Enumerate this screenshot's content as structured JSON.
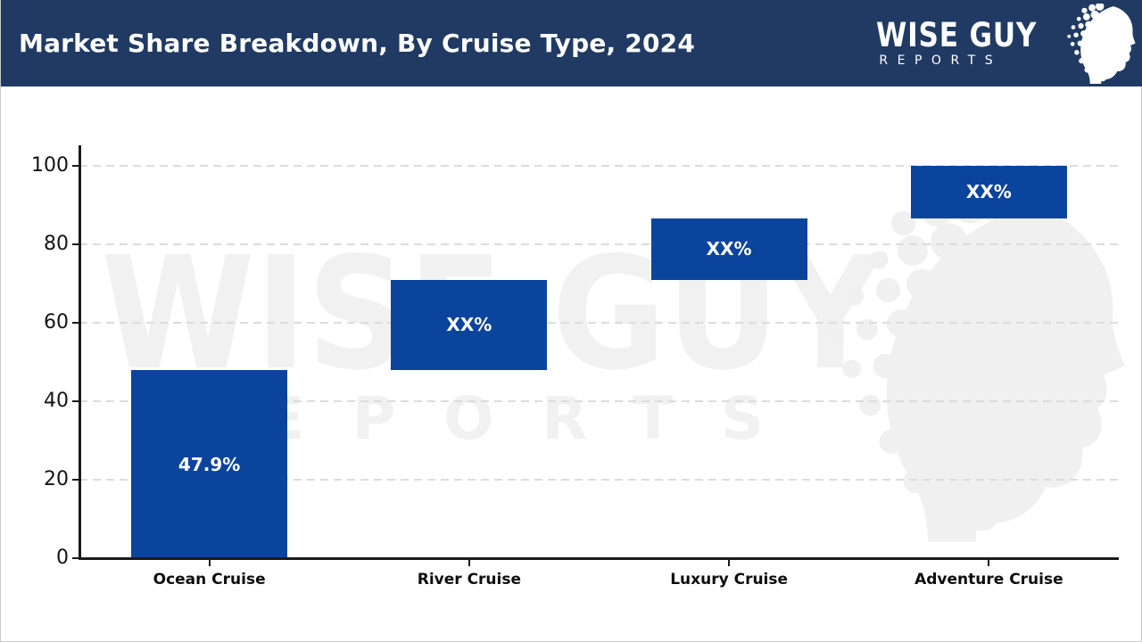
{
  "header": {
    "title": "Market Share Breakdown, By Cruise Type, 2024",
    "logo": {
      "line1": "WISE GUY",
      "line2": "REPORTS"
    }
  },
  "watermark": {
    "line1": "WISE GUY",
    "line2": "REPORTS"
  },
  "colors": {
    "header_bg": "#213a64",
    "bar": "#0b449c",
    "bar_label": "#ffffff",
    "watermark": "#f1f1f1",
    "gridline": "#dcdcdc",
    "axis": "#1a1a1a",
    "page_border": "#c9c9c9"
  },
  "chart_data": {
    "type": "bar",
    "subtype": "waterfall",
    "title": "Market Share Breakdown, By Cruise Type, 2024",
    "categories": [
      "Ocean Cruise",
      "River Cruise",
      "Luxury Cruise",
      "Adventure Cruise"
    ],
    "bars": [
      {
        "category": "Ocean Cruise",
        "start": 0,
        "end": 47.9,
        "label": "47.9%"
      },
      {
        "category": "River Cruise",
        "start": 47.9,
        "end": 71.0,
        "label": "XX%"
      },
      {
        "category": "Luxury Cruise",
        "start": 71.0,
        "end": 86.6,
        "label": "XX%"
      },
      {
        "category": "Adventure Cruise",
        "start": 86.6,
        "end": 100,
        "label": "XX%"
      }
    ],
    "xlabel": "",
    "ylabel": "",
    "ylim": [
      0,
      100
    ],
    "yticks": [
      0,
      20,
      40,
      60,
      80,
      100
    ],
    "grid": "horizontal-dashed",
    "legend": "none",
    "bar_color": "#0b449c",
    "bar_label_color": "#ffffff",
    "masked_value_label": "XX%"
  }
}
